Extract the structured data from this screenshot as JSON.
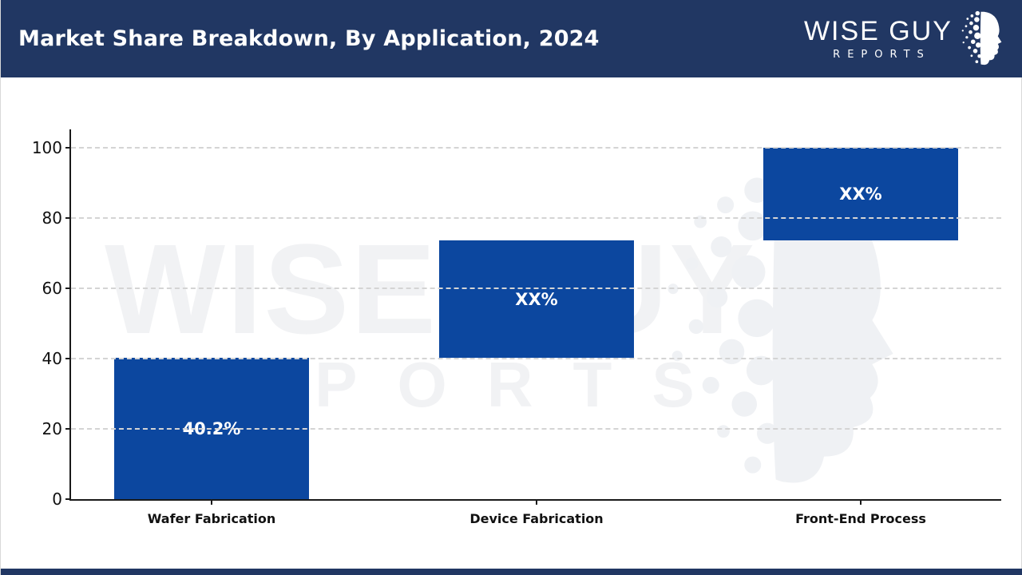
{
  "header": {
    "title": "Market Share Breakdown, By Application, 2024",
    "background_color": "#213763",
    "logo": {
      "line1": "WISE GUY",
      "line2": "REPORTS"
    }
  },
  "watermark": {
    "line1": "WISE GUY",
    "line2": "REPORTS"
  },
  "chart_data": {
    "type": "bar",
    "subtype": "waterfall",
    "title": "Market Share Breakdown, By Application, 2024",
    "categories": [
      "Wafer Fabrication",
      "Device Fabrication",
      "Front-End Process"
    ],
    "bars": [
      {
        "category": "Wafer Fabrication",
        "start": 0,
        "end": 40.2,
        "label": "40.2%"
      },
      {
        "category": "Device Fabrication",
        "start": 40.2,
        "end": 73.6,
        "label": "XX%"
      },
      {
        "category": "Front-End Process",
        "start": 73.6,
        "end": 100,
        "label": "XX%"
      }
    ],
    "yticks": [
      0,
      20,
      40,
      60,
      80,
      100
    ],
    "ylim": [
      0,
      105
    ],
    "xlabel": "",
    "ylabel": "",
    "bar_color": "#0c479f",
    "value_label_color": "#ffffff",
    "grid": "horizontal dashed",
    "legend": "none"
  },
  "footer": {
    "bar_color": "#213763"
  }
}
